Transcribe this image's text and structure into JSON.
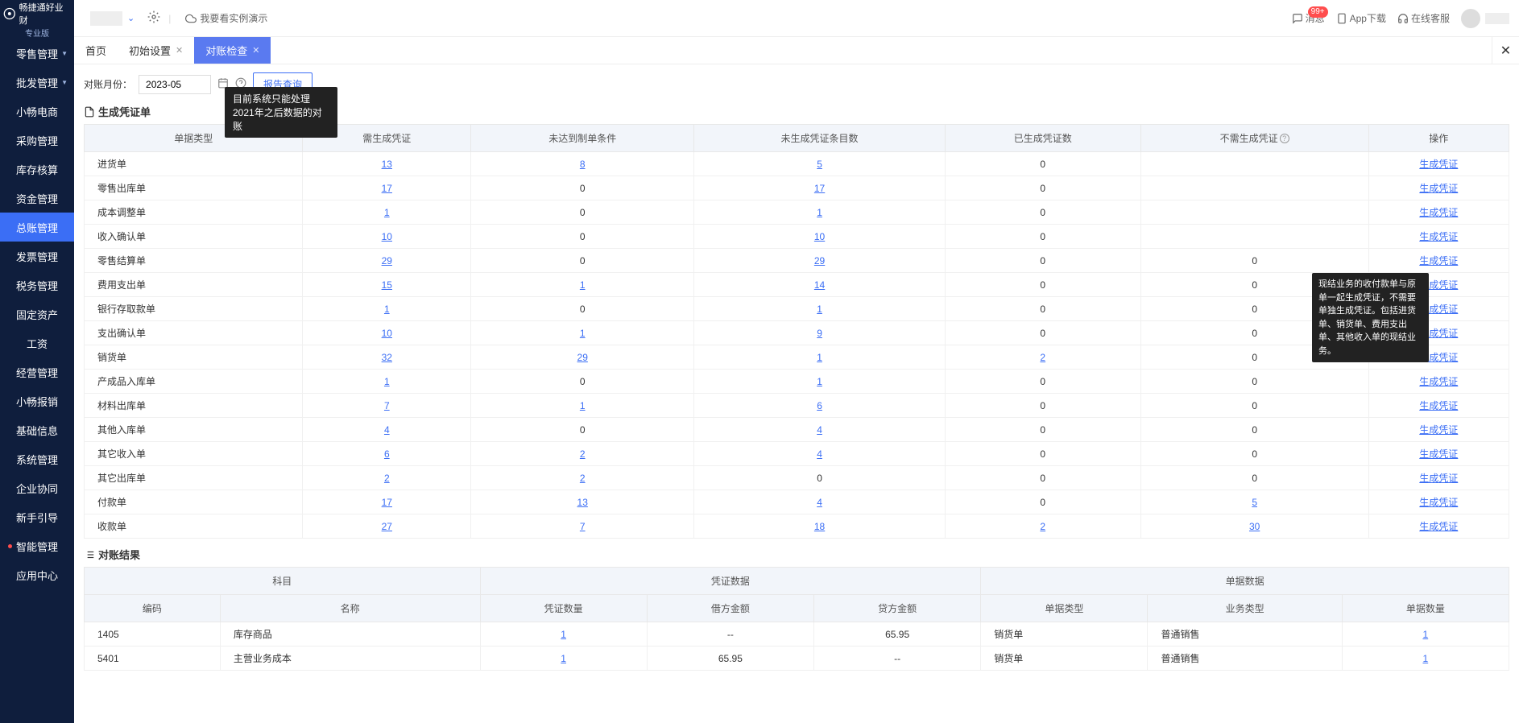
{
  "brand": {
    "name": "畅捷通好业财",
    "edition": "专业版"
  },
  "sidebar": [
    {
      "label": "零售管理",
      "arrow": true
    },
    {
      "label": "批发管理",
      "arrow": true
    },
    {
      "label": "小畅电商"
    },
    {
      "label": "采购管理"
    },
    {
      "label": "库存核算"
    },
    {
      "label": "资金管理"
    },
    {
      "label": "总账管理",
      "active": true
    },
    {
      "label": "发票管理"
    },
    {
      "label": "税务管理"
    },
    {
      "label": "固定资产"
    },
    {
      "label": "工资"
    },
    {
      "label": "经营管理"
    },
    {
      "label": "小畅报销"
    },
    {
      "label": "基础信息"
    },
    {
      "label": "系统管理"
    },
    {
      "label": "企业协同"
    },
    {
      "label": "新手引导"
    },
    {
      "label": "智能管理",
      "dot": true
    },
    {
      "label": "应用中心"
    }
  ],
  "topbar": {
    "demo": "我要看实例演示",
    "msg": "消息",
    "msg_badge": "99+",
    "app": "App下载",
    "service": "在线客服"
  },
  "tabs": [
    {
      "label": "首页",
      "closable": false
    },
    {
      "label": "初始设置",
      "closable": true
    },
    {
      "label": "对账检查",
      "closable": true,
      "active": true
    }
  ],
  "filter": {
    "label": "对账月份：",
    "value": "2023-05",
    "report_btn": "报告查询",
    "tooltip": "目前系统只能处理2021年之后数据的对账"
  },
  "section1": {
    "title": "生成凭证单",
    "headers": [
      "单据类型",
      "需生成凭证",
      "未达到制单条件",
      "未生成凭证条目数",
      "已生成凭证数",
      "不需生成凭证",
      "操作"
    ],
    "header_tooltip": "现结业务的收付款单与原单一起生成凭证，不需要单独生成凭证。包括进货单、销货单、费用支出单、其他收入单的现结业务。",
    "action_label": "生成凭证",
    "rows": [
      {
        "type": "进货单",
        "c1": "13",
        "c1l": true,
        "c2": "8",
        "c2l": true,
        "c3": "5",
        "c3l": true,
        "c4": "0",
        "c5": "",
        "c5l": false
      },
      {
        "type": "零售出库单",
        "c1": "17",
        "c1l": true,
        "c2": "0",
        "c2l": false,
        "c3": "17",
        "c3l": true,
        "c4": "0",
        "c5": "",
        "c5l": false
      },
      {
        "type": "成本调整单",
        "c1": "1",
        "c1l": true,
        "c2": "0",
        "c2l": false,
        "c3": "1",
        "c3l": true,
        "c4": "0",
        "c5": "",
        "c5l": false
      },
      {
        "type": "收入确认单",
        "c1": "10",
        "c1l": true,
        "c2": "0",
        "c2l": false,
        "c3": "10",
        "c3l": true,
        "c4": "0",
        "c5": "",
        "c5l": false
      },
      {
        "type": "零售结算单",
        "c1": "29",
        "c1l": true,
        "c2": "0",
        "c2l": false,
        "c3": "29",
        "c3l": true,
        "c4": "0",
        "c5": "0",
        "c5l": false
      },
      {
        "type": "费用支出单",
        "c1": "15",
        "c1l": true,
        "c2": "1",
        "c2l": true,
        "c3": "14",
        "c3l": true,
        "c4": "0",
        "c5": "0",
        "c5l": false
      },
      {
        "type": "银行存取款单",
        "c1": "1",
        "c1l": true,
        "c2": "0",
        "c2l": false,
        "c3": "1",
        "c3l": true,
        "c4": "0",
        "c5": "0",
        "c5l": false
      },
      {
        "type": "支出确认单",
        "c1": "10",
        "c1l": true,
        "c2": "1",
        "c2l": true,
        "c3": "9",
        "c3l": true,
        "c4": "0",
        "c5": "0",
        "c5l": false
      },
      {
        "type": "销货单",
        "c1": "32",
        "c1l": true,
        "c2": "29",
        "c2l": true,
        "c3": "1",
        "c3l": true,
        "c4": "2",
        "c4l": true,
        "c5": "0",
        "c5l": false
      },
      {
        "type": "产成品入库单",
        "c1": "1",
        "c1l": true,
        "c2": "0",
        "c2l": false,
        "c3": "1",
        "c3l": true,
        "c4": "0",
        "c5": "0",
        "c5l": false
      },
      {
        "type": "材料出库单",
        "c1": "7",
        "c1l": true,
        "c2": "1",
        "c2l": true,
        "c3": "6",
        "c3l": true,
        "c4": "0",
        "c5": "0",
        "c5l": false
      },
      {
        "type": "其他入库单",
        "c1": "4",
        "c1l": true,
        "c2": "0",
        "c2l": false,
        "c3": "4",
        "c3l": true,
        "c4": "0",
        "c5": "0",
        "c5l": false
      },
      {
        "type": "其它收入单",
        "c1": "6",
        "c1l": true,
        "c2": "2",
        "c2l": true,
        "c3": "4",
        "c3l": true,
        "c4": "0",
        "c5": "0",
        "c5l": false
      },
      {
        "type": "其它出库单",
        "c1": "2",
        "c1l": true,
        "c2": "2",
        "c2l": true,
        "c3": "0",
        "c3l": false,
        "c4": "0",
        "c5": "0",
        "c5l": false
      },
      {
        "type": "付款单",
        "c1": "17",
        "c1l": true,
        "c2": "13",
        "c2l": true,
        "c3": "4",
        "c3l": true,
        "c4": "0",
        "c5": "5",
        "c5l": true
      },
      {
        "type": "收款单",
        "c1": "27",
        "c1l": true,
        "c2": "7",
        "c2l": true,
        "c3": "18",
        "c3l": true,
        "c4": "2",
        "c4l": true,
        "c5": "30",
        "c5l": true
      }
    ]
  },
  "section2": {
    "title": "对账结果",
    "group_headers": [
      "科目",
      "凭证数据",
      "单据数据"
    ],
    "headers": [
      "编码",
      "名称",
      "凭证数量",
      "借方金额",
      "贷方金额",
      "单据类型",
      "业务类型",
      "单据数量"
    ],
    "rows": [
      {
        "code": "1405",
        "name": "库存商品",
        "vc": "1",
        "vcl": true,
        "debit": "--",
        "credit": "65.95",
        "btype": "销货单",
        "biz": "普通销售",
        "bc": "1",
        "bcl": true
      },
      {
        "code": "5401",
        "name": "主营业务成本",
        "vc": "1",
        "vcl": true,
        "debit": "65.95",
        "credit": "--",
        "btype": "销货单",
        "biz": "普通销售",
        "bc": "1",
        "bcl": true
      }
    ]
  }
}
